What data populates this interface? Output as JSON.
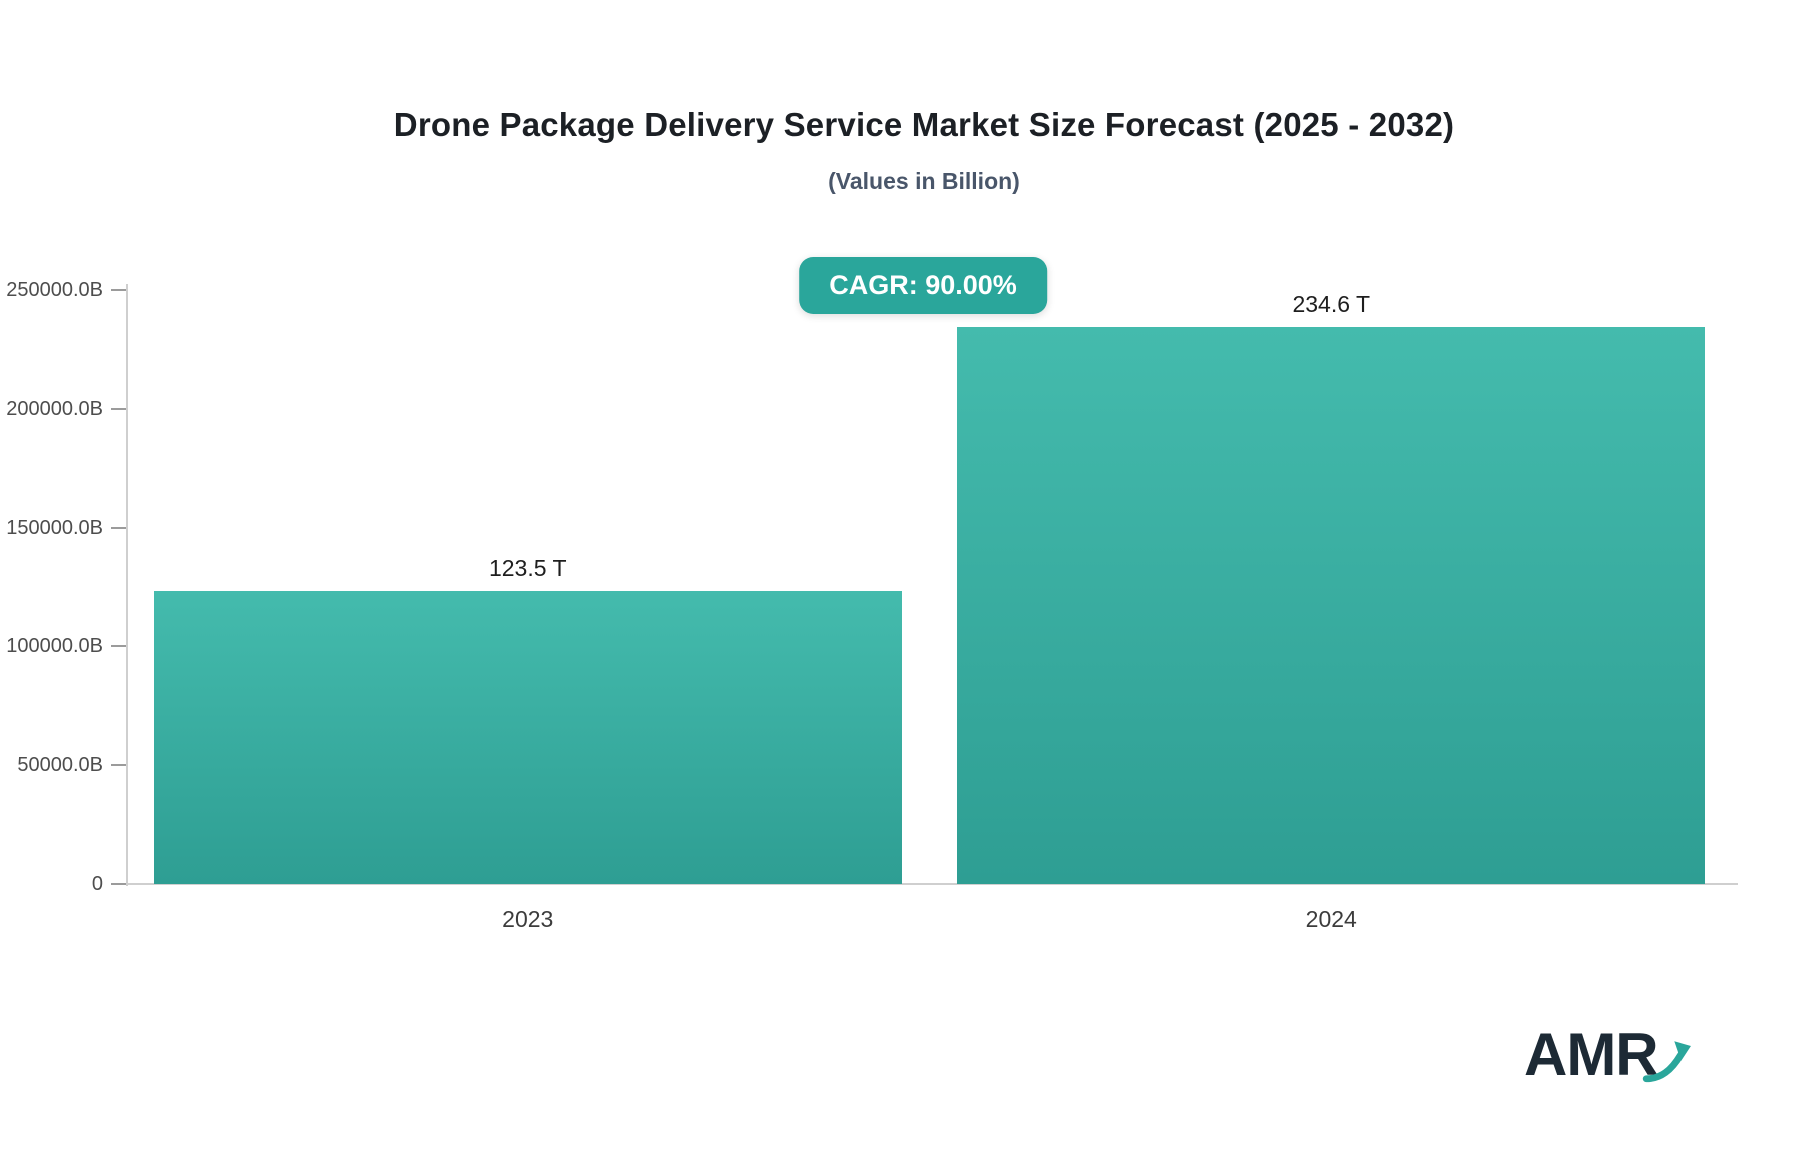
{
  "badge": {
    "bg": "#2aa69b",
    "text_color": "#ffffff"
  },
  "logo": {
    "text": "AMR",
    "color": "#1d2a35",
    "arrow_color": "#2aa69b"
  },
  "chart_data": {
    "type": "bar",
    "title": "Drone Package Delivery Service Market Size Forecast (2025 - 2032)",
    "subtitle": "(Values in Billion)",
    "unit": "Billion",
    "categories": [
      "2023",
      "2024"
    ],
    "values": [
      123500,
      234600
    ],
    "value_labels": [
      "123.5 T",
      "234.6 T"
    ],
    "annotations": [
      "CAGR: 90.00%"
    ],
    "xlabel": "",
    "ylabel": "",
    "ylim": [
      0,
      250000
    ],
    "ytick_step": 50000,
    "ytick_labels": [
      "0",
      "50000.0B",
      "100000.0B",
      "150000.0B",
      "200000.0B",
      "250000.0B"
    ],
    "grid": false,
    "legend": false,
    "bar_color_top": "#44bbad",
    "bar_color_bottom": "#2e9e93"
  }
}
